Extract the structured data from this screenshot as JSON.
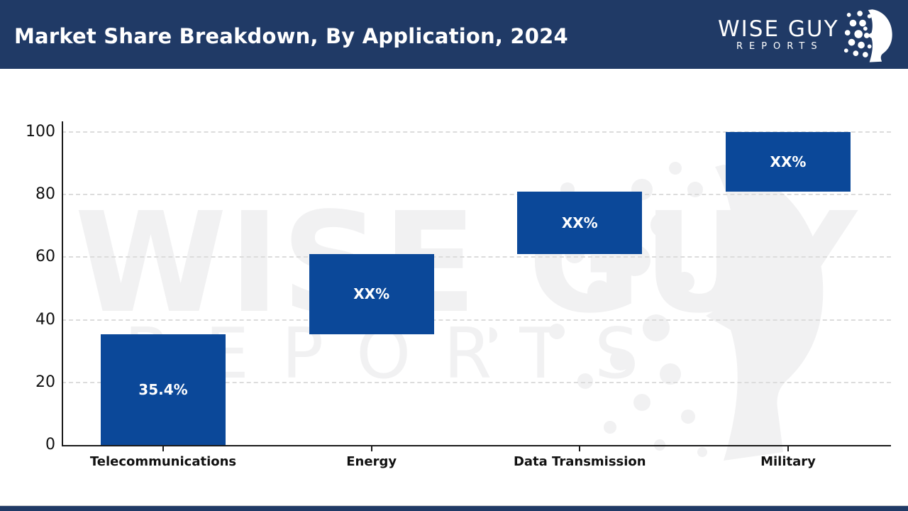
{
  "header": {
    "title": "Market Share Breakdown, By Application, 2024",
    "logo": {
      "line1": "WISE GUY",
      "line2": "REPORTS"
    }
  },
  "watermark": {
    "line1": "WISE GUY",
    "line2": "REPORTS"
  },
  "chart_data": {
    "type": "bar",
    "subtype": "waterfall",
    "title": "Market Share Breakdown, By Application, 2024",
    "categories": [
      "Telecommunications",
      "Energy",
      "Data Transmission",
      "Military"
    ],
    "segments": [
      {
        "category": "Telecommunications",
        "start": 0,
        "end": 35.4,
        "label": "35.4%"
      },
      {
        "category": "Energy",
        "start": 35.4,
        "end": 61,
        "label": "XX%"
      },
      {
        "category": "Data Transmission",
        "start": 61,
        "end": 81,
        "label": "XX%"
      },
      {
        "category": "Military",
        "start": 81,
        "end": 100,
        "label": "XX%"
      }
    ],
    "xlabel": "",
    "ylabel": "",
    "ylim": [
      0,
      100
    ],
    "yticks": [
      0,
      20,
      40,
      60,
      80,
      100
    ],
    "grid": "horizontal-dashed",
    "legend": "none",
    "colors": {
      "bar": "#0B4899",
      "header": "#203A66",
      "axis": "#1A1A1A",
      "grid": "#DCDCDC",
      "bar_label": "#FFFFFF",
      "watermark": "#F1F1F2"
    }
  }
}
